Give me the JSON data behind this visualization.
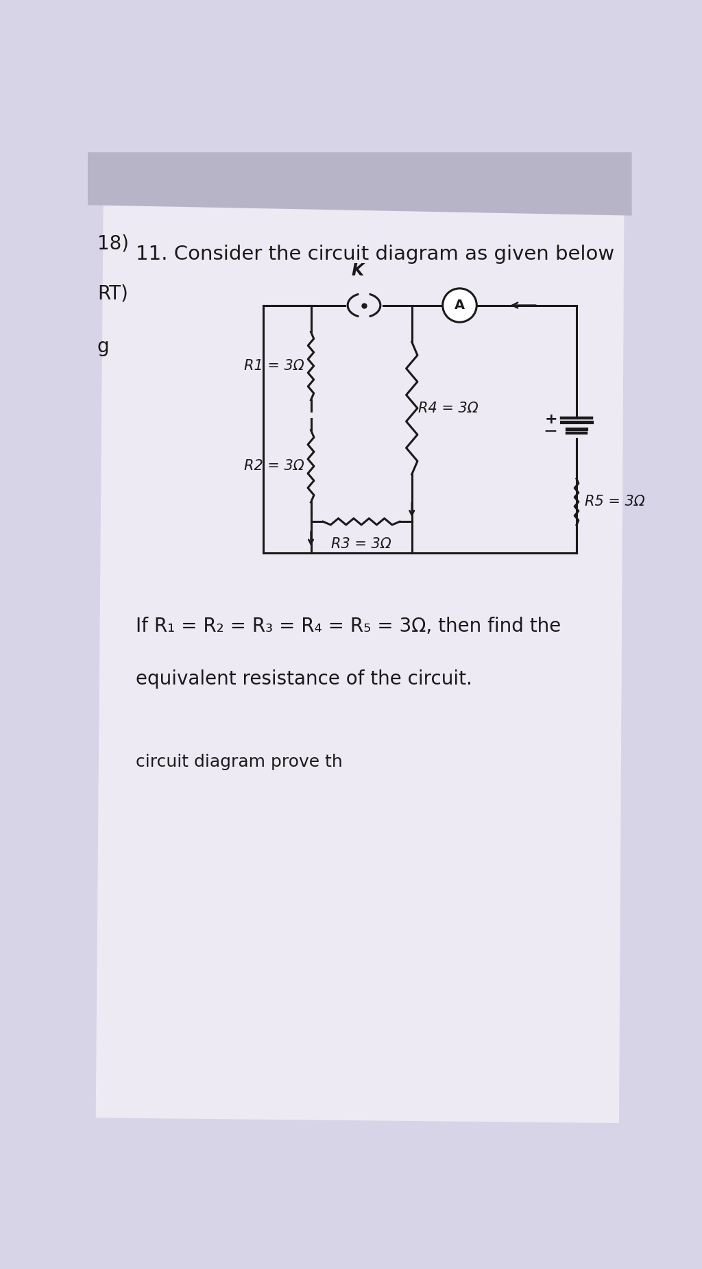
{
  "bg_color": "#d8d4e8",
  "page_color": "#eceaf4",
  "title_text": "11. Consider the circuit diagram as given below",
  "label_R5": "R5 = 3Ω",
  "label_R4": "R4 = 3Ω",
  "label_R3": "R3 = 3Ω",
  "label_R1": "R1 = 3Ω",
  "label_R2": "R2 = 3Ω",
  "label_K": "K",
  "label_A": "A",
  "text_color": "#1a1a1a",
  "line_color": "#1a1a1a",
  "font_size_title": 21,
  "font_size_label": 15,
  "font_size_text": 20,
  "left_text_line1": "18)",
  "left_text_line2": "RT)",
  "left_text_line3": "g",
  "cond_line1": "If R₁ = R₂ = R₃ = R₄ = R₅ = 3Ω, then find the",
  "cond_line2": "equivalent resistance of the circuit.",
  "cond_line3": "circuit diagram prove th"
}
